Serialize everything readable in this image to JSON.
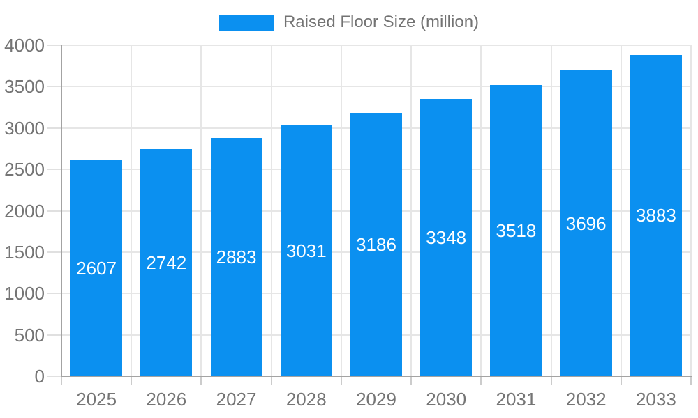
{
  "legend": {
    "label": "Raised Floor Size (million)"
  },
  "colors": {
    "bar": "#0b90f0",
    "value_label": "#ffffff",
    "axis_text": "#757575",
    "legend_text": "#737373"
  },
  "chart_data": {
    "type": "bar",
    "title": "",
    "xlabel": "",
    "ylabel": "",
    "categories": [
      "2025",
      "2026",
      "2027",
      "2028",
      "2029",
      "2030",
      "2031",
      "2032",
      "2033"
    ],
    "series": [
      {
        "name": "Raised Floor Size (million)",
        "values": [
          2607,
          2742,
          2883,
          3031,
          3186,
          3348,
          3518,
          3696,
          3883
        ]
      }
    ],
    "ylim": [
      0,
      4000
    ],
    "ytick_step": 500,
    "ytick_labels": [
      "0",
      "500",
      "1000",
      "1500",
      "2000",
      "2500",
      "3000",
      "3500",
      "4000"
    ],
    "grid": true,
    "value_labels": "inside-center",
    "legend_position": "top-center",
    "bar_color": "#0b90f0"
  }
}
